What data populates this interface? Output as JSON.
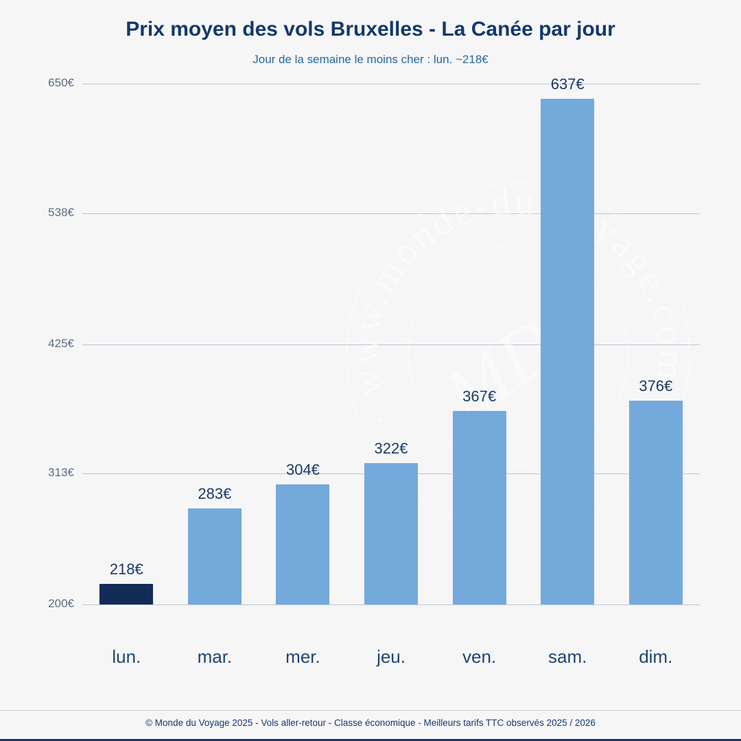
{
  "header": {
    "title": "Prix moyen des vols Bruxelles - La Canée par jour",
    "subtitle": "Jour de la semaine le moins cher : lun. ~218€"
  },
  "chart_data": {
    "type": "bar",
    "categories": [
      "lun.",
      "mar.",
      "mer.",
      "jeu.",
      "ven.",
      "sam.",
      "dim."
    ],
    "values": [
      218,
      283,
      304,
      322,
      367,
      637,
      376
    ],
    "value_labels": [
      "218€",
      "283€",
      "304€",
      "322€",
      "367€",
      "637€",
      "376€"
    ],
    "highlight_index": 0,
    "y_ticks": [
      650,
      538,
      425,
      313,
      200
    ],
    "y_tick_labels": [
      "650€",
      "538€",
      "425€",
      "313€",
      "200€"
    ],
    "ylim": [
      200,
      650
    ],
    "bar_color": "#74a9dc",
    "highlight_color": "#122b57",
    "grid": true,
    "legend": "none",
    "title": "Prix moyen des vols Bruxelles - La Canée par jour",
    "xlabel": "",
    "ylabel": ""
  },
  "watermark": {
    "ring_text": "· www.monde-du-voyage.com ·",
    "acronym": "MDV"
  },
  "footer": {
    "text": "© Monde du Voyage 2025 - Vols aller-retour - Classe économique - Meilleurs tarifs TTC observés 2025 / 2026"
  }
}
